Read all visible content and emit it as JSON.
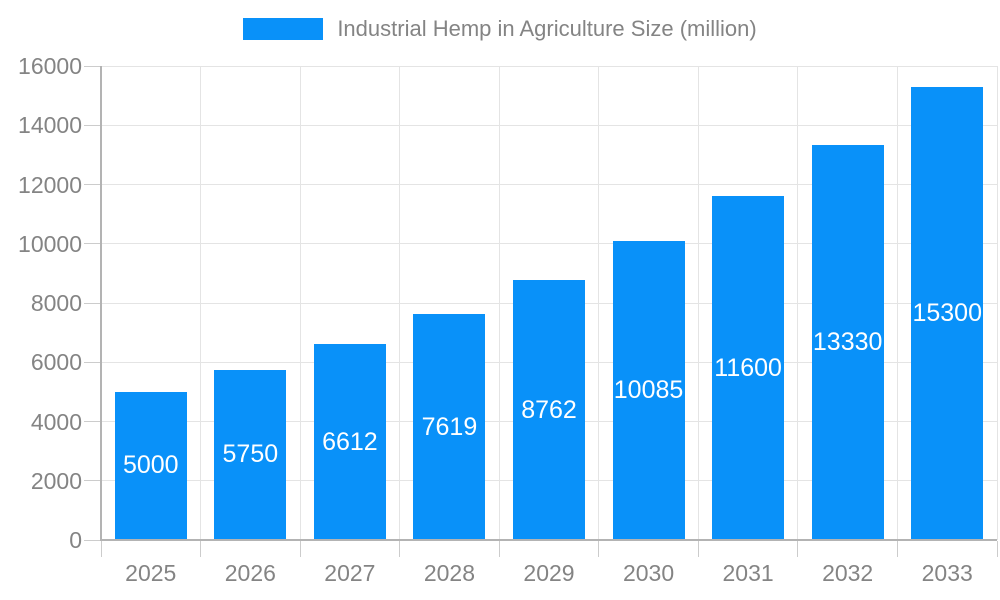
{
  "legend": {
    "label": "Industrial Hemp in Agriculture Size (million)"
  },
  "style": {
    "background": "#ffffff",
    "bar_color": "#0991f9",
    "grid_line_color": "#e4e4e4",
    "tick_line_color": "#cccccc",
    "axis_line_color": "#b3b3b3",
    "axis_text_color": "#848484",
    "bar_label_color": "#ffffff"
  },
  "chart_data": {
    "type": "bar",
    "title": "Industrial Hemp in Agriculture Size (million)",
    "series_name": "Industrial Hemp in Agriculture Size (million)",
    "categories": [
      "2025",
      "2026",
      "2027",
      "2028",
      "2029",
      "2030",
      "2031",
      "2032",
      "2033"
    ],
    "values": [
      5000,
      5750,
      6612,
      7619,
      8762,
      10085,
      11600,
      13330,
      15300
    ],
    "xlabel": "",
    "ylabel": "",
    "ylim": [
      0,
      16000
    ],
    "yticks": [
      0,
      2000,
      4000,
      6000,
      8000,
      10000,
      12000,
      14000,
      16000
    ],
    "legend_position": "top-center",
    "grid": true,
    "bar_label_position": "inside-center"
  }
}
